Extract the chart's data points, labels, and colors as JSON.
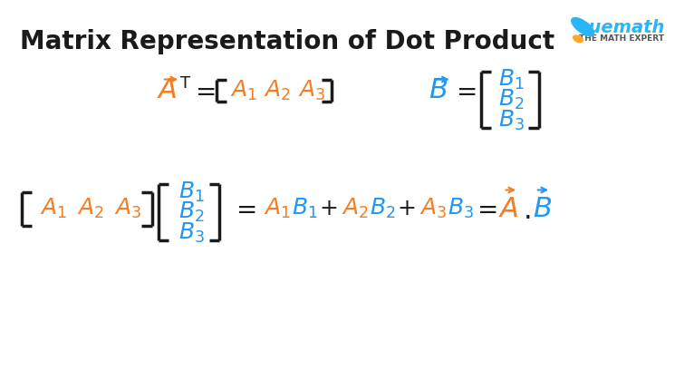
{
  "title": "Matrix Representation of Dot Product",
  "title_fontsize": 20,
  "bg_color": "#ffffff",
  "orange": "#F57C20",
  "blue": "#2196F3",
  "black": "#1a1a1a",
  "fig_width": 7.66,
  "fig_height": 4.19
}
